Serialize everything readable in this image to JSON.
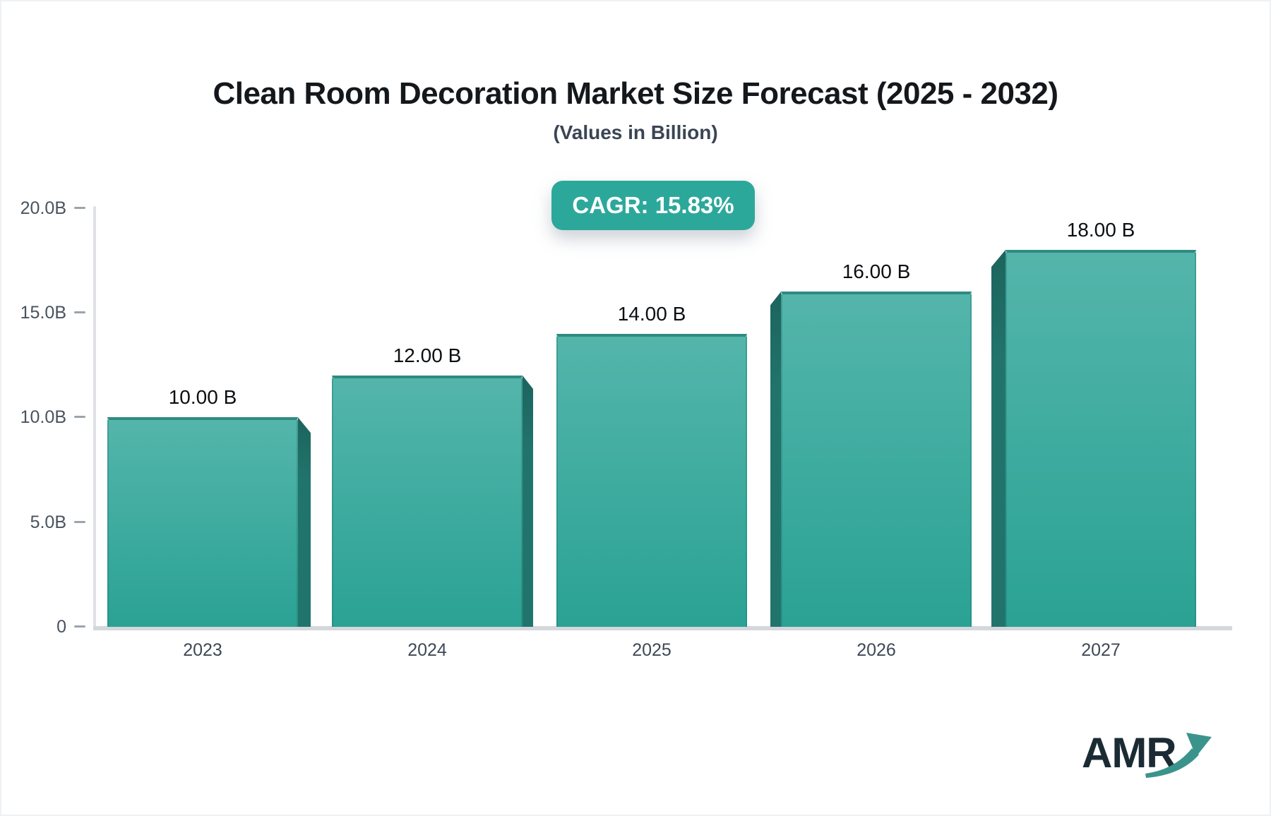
{
  "chart_data": {
    "type": "bar",
    "title": "Clean Room Decoration Market Size Forecast (2025 - 2032)",
    "subtitle": "(Values in Billion)",
    "cagr_label": "CAGR: 15.83%",
    "categories": [
      "2023",
      "2024",
      "2025",
      "2026",
      "2027"
    ],
    "values": [
      10,
      12,
      14,
      16,
      18
    ],
    "bar_labels": [
      "10.00 B",
      "12.00 B",
      "14.00 B",
      "16.00 B",
      "18.00 B"
    ],
    "y_tick_labels": [
      "20.0B",
      "15.0B",
      "10.0B",
      "5.0B",
      "0"
    ],
    "y_tick_values": [
      20,
      15,
      10,
      5,
      0
    ],
    "ylim": [
      0,
      20
    ],
    "grid": "off",
    "legend": "none",
    "colors": {
      "bar_top": "#54b5ab",
      "bar_bottom": "#2aa294",
      "bar_edge": "#2e8b81",
      "bar_side_dark": "#21746c",
      "bar_side_darker": "#1c645d",
      "badge_bg": "#2ca89b",
      "axis_line": "#dfe1e5",
      "baseline": "#d4d7dc",
      "title": "#14181c",
      "subtitle": "#3a4554",
      "tick_label": "#49535f",
      "x_label": "#3e4956",
      "value_label": "#0c0f12",
      "logo_text": "#1b2b33",
      "logo_arrow": "#3b948b"
    }
  },
  "branding": {
    "logo_text": "AMR"
  }
}
